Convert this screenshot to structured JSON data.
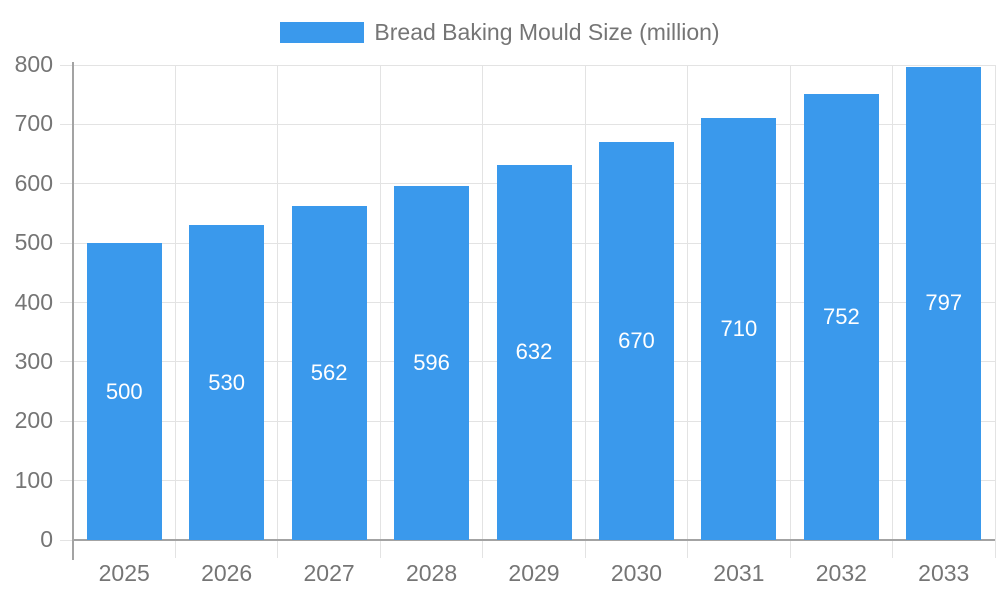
{
  "chart_data": {
    "type": "bar",
    "title": "Bread Baking Mould Size (million)",
    "legend": {
      "label": "Bread Baking Mould Size (million)",
      "position": "top-center"
    },
    "categories": [
      "2025",
      "2026",
      "2027",
      "2028",
      "2029",
      "2030",
      "2031",
      "2032",
      "2033"
    ],
    "series": [
      {
        "name": "Bread Baking Mould Size (million)",
        "values": [
          500,
          530,
          562,
          596,
          632,
          670,
          710,
          752,
          797
        ]
      }
    ],
    "data_labels_shown": true,
    "xlabel": "",
    "ylabel": "",
    "ylim": [
      0,
      800
    ],
    "yticks": [
      0,
      100,
      200,
      300,
      400,
      500,
      600,
      700,
      800
    ],
    "grid": "horizontal-and-vertical",
    "colors": {
      "bar": "#3A99EC",
      "axis_text": "#757575",
      "legend_text": "#757575",
      "grid_line": "#E3E3E3",
      "axis_line": "#A3A3A3",
      "bar_label": "#FFFFFF",
      "background": "#FFFFFF"
    }
  }
}
